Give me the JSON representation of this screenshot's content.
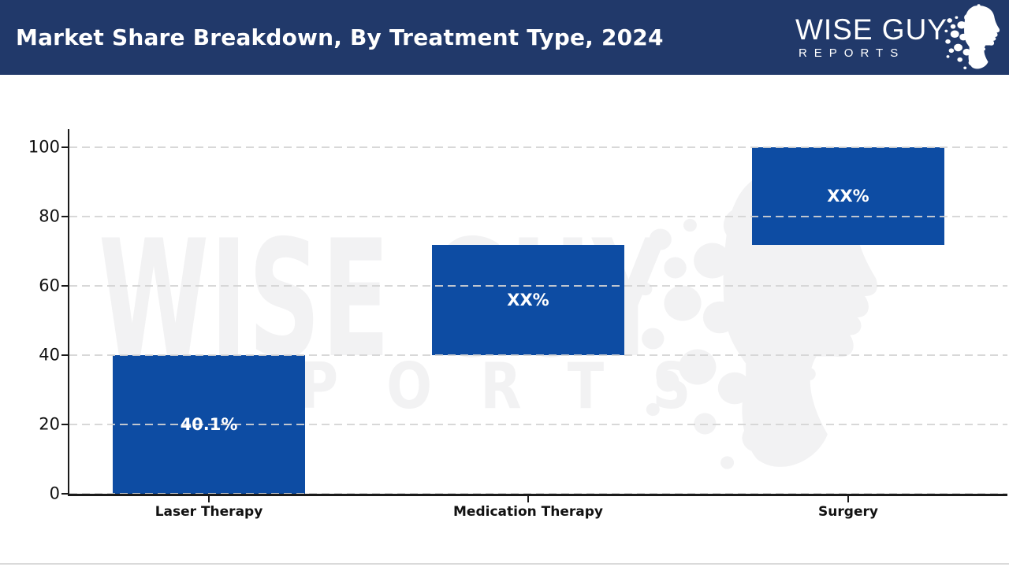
{
  "header": {
    "title": "Market Share Breakdown, By Treatment Type, 2024",
    "logo": {
      "wordmark": "WISE GUY",
      "subtitle": "REPORTS"
    }
  },
  "watermark": {
    "line1": "WISE GUY",
    "line2": "REPORTS"
  },
  "colors": {
    "header_bg": "#21396a",
    "bar": "#0d4ca3",
    "bar_label": "#ffffff",
    "axis": "#1a1a1a",
    "gridline": "#d4d4d4",
    "watermark": "#f2f2f3",
    "footer_line": "#dadada"
  },
  "chart_data": {
    "type": "bar",
    "title": "Market Share Breakdown, By Treatment Type, 2024",
    "categories": [
      "Laser Therapy",
      "Medication Therapy",
      "Surgery"
    ],
    "segments": [
      {
        "category": "Laser Therapy",
        "start": 0,
        "end": 40.1,
        "label": "40.1%"
      },
      {
        "category": "Medication Therapy",
        "start": 40.1,
        "end": 71.8,
        "label": "XX%"
      },
      {
        "category": "Surgery",
        "start": 71.8,
        "end": 100,
        "label": "XX%"
      }
    ],
    "yticks": [
      0,
      20,
      40,
      60,
      80,
      100
    ],
    "ylim": [
      0,
      100
    ],
    "xlabel": "",
    "ylabel": "",
    "grid": "horizontal-dashed",
    "legend": "none",
    "watermark_text": "WISE GUY REPORTS"
  }
}
